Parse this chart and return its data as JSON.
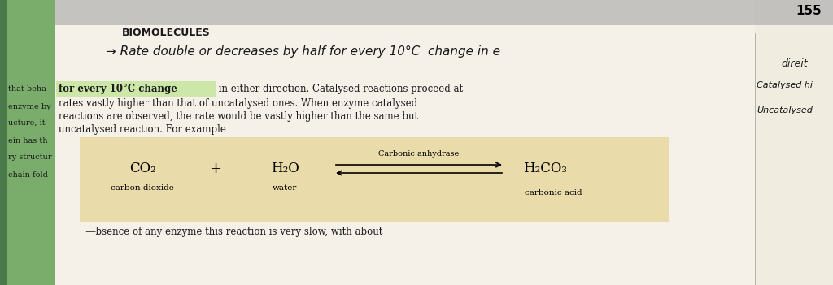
{
  "bg_left_color": "#7aad6b",
  "bg_main_color": "#f5f0e8",
  "bg_right_color": "#f0ece0",
  "bg_highlight_color": "#c8e6a0",
  "page_number": "155",
  "header_text": "BIOMOLECULES",
  "handwritten_line": "→ Rate double or decreases by half for every 10°C  change in e",
  "handwritten_line2": "                                                                               direit",
  "highlight_text": "for every 10°C change",
  "body_line1": " in either direction. Catalysed reactions proceed at",
  "body_line2": "rates vastly higher than that of uncatalysed ones. When enzyme catalysed",
  "body_line3": "reactions are observed, the rate would be vastly higher than the same but",
  "body_line4": "uncatalysed reaction. For example",
  "right_note1": "Catalysed hi",
  "right_note2": "Uncatalysed",
  "left_sidebar_texts": [
    "that beha",
    "enzyme by",
    "ucture, it",
    "ein has th",
    "ry structur",
    "chain fold"
  ],
  "equation_box_color": "#e8d8a0",
  "eq_reactant1": "CO₂",
  "eq_reactant1_label": "carbon dioxide",
  "eq_plus": "+",
  "eq_reactant2": "H₂O",
  "eq_reactant2_label": "water",
  "eq_enzyme": "Carbonic anhydrase",
  "eq_product": "H₂CO₃",
  "eq_product_label": "carbonic acid",
  "bottom_text": "         ―bsence of any enzyme this reaction is very slow, with about",
  "left_bar_color": "#4a7a4a"
}
